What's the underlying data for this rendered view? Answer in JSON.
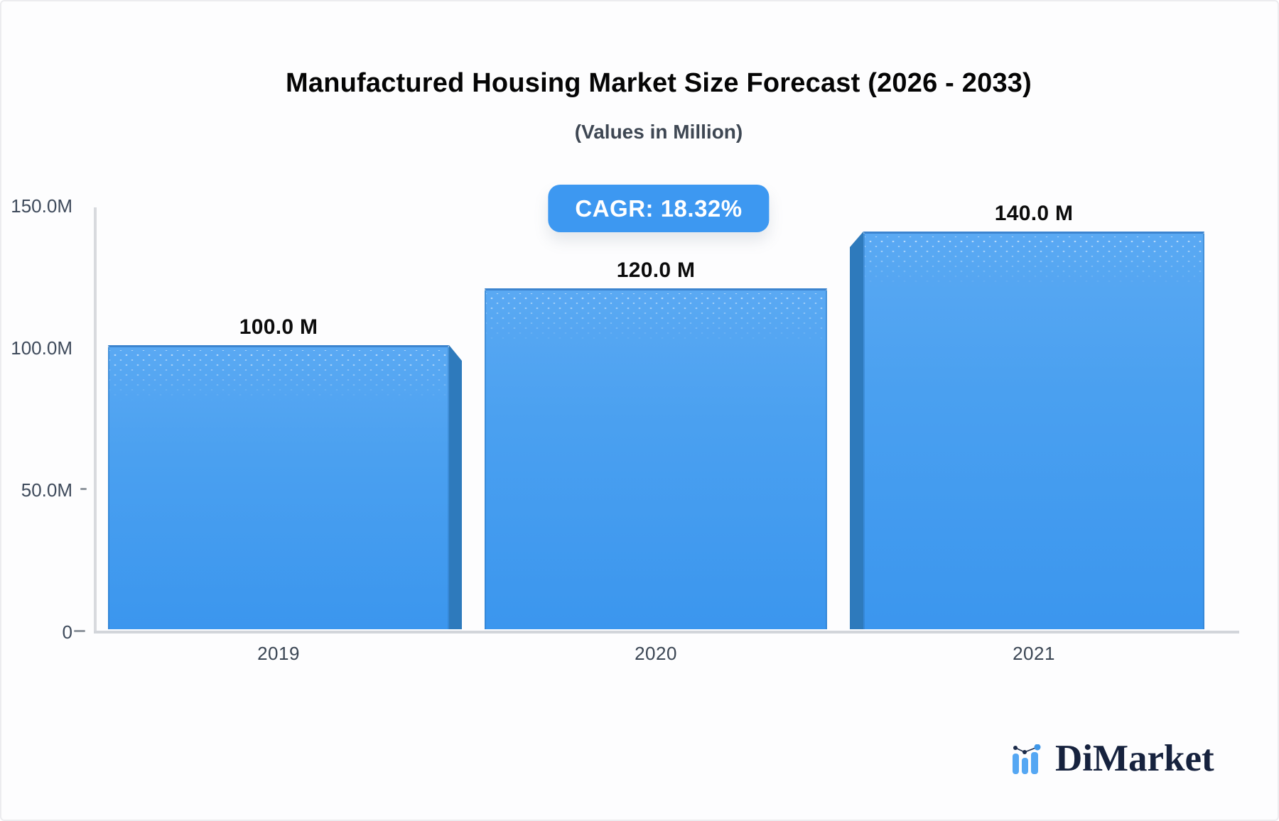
{
  "chart_data": {
    "type": "bar",
    "title": "Manufactured Housing Market Size Forecast (2026 - 2033)",
    "subtitle": "(Values in Million)",
    "unit": "Million",
    "categories": [
      "2019",
      "2020",
      "2021"
    ],
    "values": [
      100.0,
      120.0,
      140.0
    ],
    "value_labels": [
      "100.0 M",
      "120.0 M",
      "140.0 M"
    ],
    "ylim": [
      0,
      150
    ],
    "ytick_labels": [
      "150.0M",
      "100.0M",
      "50.0M",
      "0"
    ],
    "ytick_values": [
      150,
      100,
      50,
      0
    ],
    "grid": false,
    "legend": "none",
    "bar_face_color": "#459ff0",
    "bar_side_color": "#2e7abc"
  },
  "badge": {
    "label": "CAGR: 18.32%",
    "color": "#3d98f1"
  },
  "branding": {
    "name": "DiMarket",
    "icon": "mini-bar-chart-sparkline-icon",
    "text_color": "#16223e",
    "icon_color": "#55a7f3"
  },
  "colors": {
    "axis_line": "#d5d8dc",
    "tick_label": "#3e4a5b",
    "value_label": "#0c0c0c",
    "title": "#050505",
    "subtitle": "#3e4753"
  }
}
